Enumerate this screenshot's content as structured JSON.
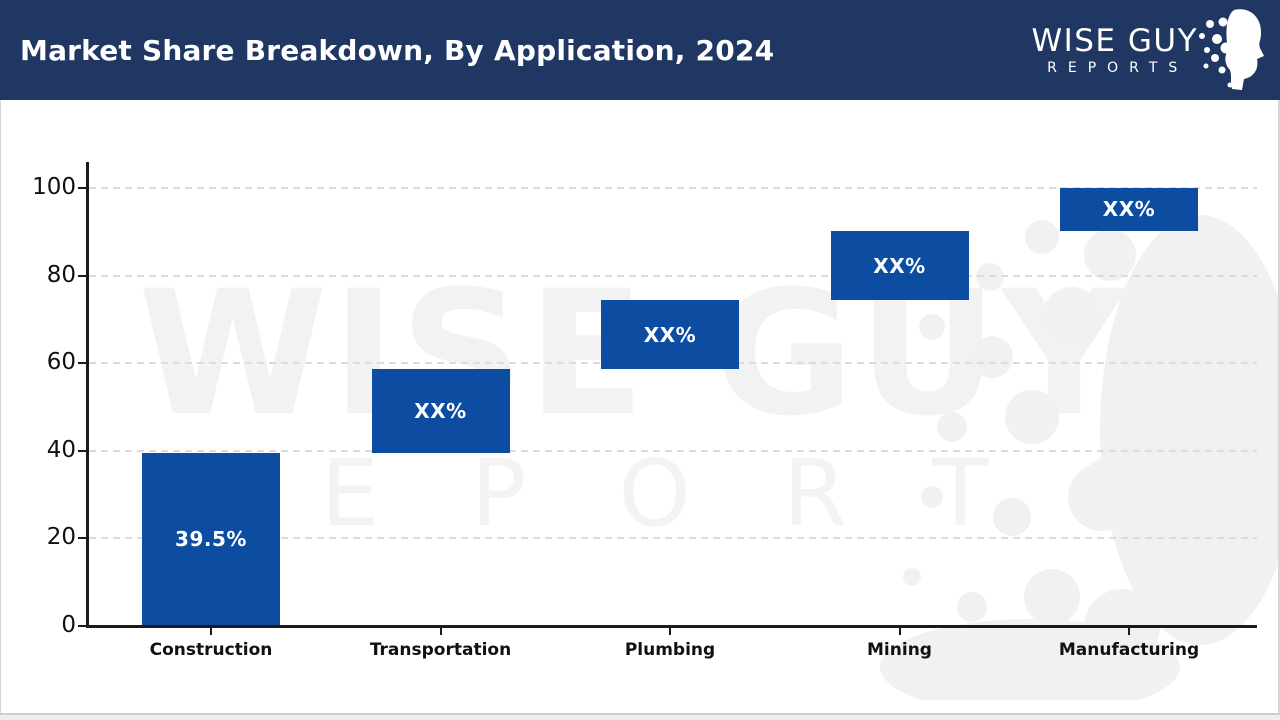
{
  "header": {
    "title": "Market Share Breakdown, By Application, 2024",
    "logo": {
      "line1": "WISE GUY",
      "line2": "REPORTS"
    }
  },
  "watermark": {
    "line1": "WISE GUY",
    "line2": "REPORTS"
  },
  "colors": {
    "header_navy": "#203764",
    "bar_blue": "#0c4da2",
    "grid_gray": "#dcdcdc",
    "watermark_gray": "#f1f1f3",
    "bar_label_white": "#ffffff"
  },
  "chart_data": {
    "type": "bar",
    "subtype": "waterfall",
    "title": "Market Share Breakdown, By Application, 2024",
    "categories": [
      "Construction",
      "Transportation",
      "Plumbing",
      "Mining",
      "Manufacturing"
    ],
    "segments": [
      {
        "category": "Construction",
        "start": 0,
        "end": 39.5,
        "label": "39.5%"
      },
      {
        "category": "Transportation",
        "start": 39.5,
        "end": 58.6,
        "label": "XX%"
      },
      {
        "category": "Plumbing",
        "start": 58.6,
        "end": 74.4,
        "label": "XX%"
      },
      {
        "category": "Mining",
        "start": 74.4,
        "end": 90.2,
        "label": "XX%"
      },
      {
        "category": "Manufacturing",
        "start": 90.2,
        "end": 100,
        "label": "XX%"
      }
    ],
    "values": [
      39.5,
      19.1,
      15.8,
      15.8,
      9.8
    ],
    "yticks": [
      0,
      20,
      40,
      60,
      80,
      100
    ],
    "ylim": [
      0,
      105
    ],
    "xlabel": "",
    "ylabel": "",
    "grid": "horizontal dashed",
    "legend": "none",
    "bar_color": "#0c4da2",
    "value_label_color": "#ffffff"
  }
}
